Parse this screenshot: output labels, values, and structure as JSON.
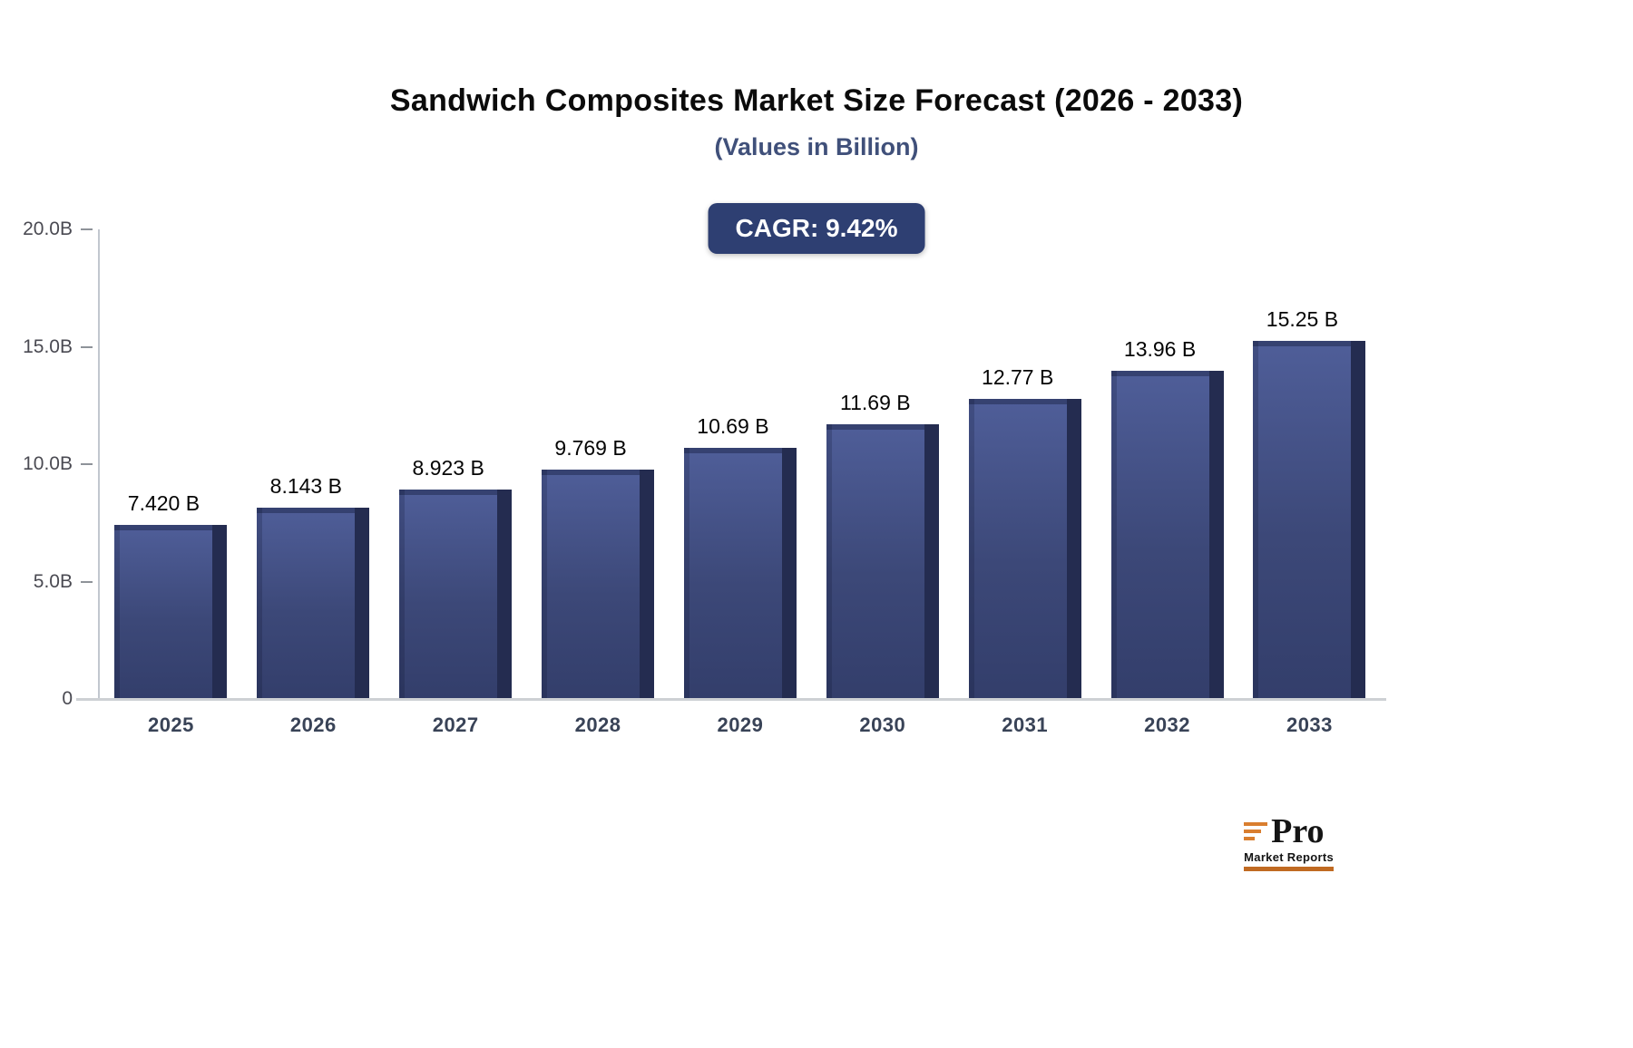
{
  "header": {
    "title": "Sandwich Composites Market Size Forecast (2026 - 2033)",
    "subtitle": "(Values in Billion)",
    "cagr_label": "CAGR: 9.42%"
  },
  "badge": {
    "background_color": "#2e3f72",
    "text_color": "#ffffff"
  },
  "chart_data": {
    "type": "bar",
    "title": "Sandwich Composites Market Size Forecast (2026 - 2033)",
    "subtitle": "(Values in Billion)",
    "categories": [
      "2025",
      "2026",
      "2027",
      "2028",
      "2029",
      "2030",
      "2031",
      "2032",
      "2033"
    ],
    "values": [
      7.42,
      8.143,
      8.923,
      9.769,
      10.69,
      11.69,
      12.77,
      13.96,
      15.25
    ],
    "value_labels": [
      "7.420 B",
      "8.143 B",
      "8.923 B",
      "9.769 B",
      "10.69 B",
      "11.69 B",
      "12.77 B",
      "13.96 B",
      "15.25 B"
    ],
    "xlabel": "",
    "ylabel": "",
    "ylim": [
      0,
      20
    ],
    "y_ticks": [
      "0",
      "5.0B",
      "10.0B",
      "15.0B",
      "20.0B"
    ],
    "grid": false,
    "legend": false,
    "annotation": "CAGR: 9.42%",
    "bar_color_top": "#4f5e99",
    "bar_color_bottom": "#333e6b",
    "bar_side_color": "#242c50"
  },
  "logo": {
    "name": "Pro",
    "subtitle": "Market Reports",
    "accent_color": "#d97e2f"
  }
}
